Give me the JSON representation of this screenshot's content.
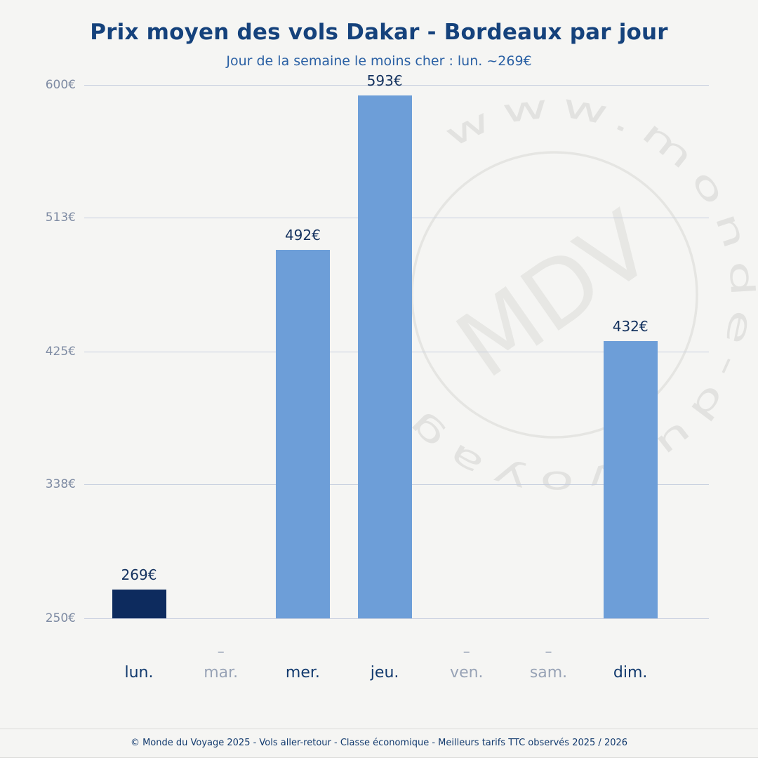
{
  "title": "Prix moyen des vols Dakar - Bordeaux par jour",
  "subtitle": "Jour de la semaine le moins cher : lun. ~269€",
  "chart_data": {
    "type": "bar",
    "categories": [
      "lun.",
      "mar.",
      "mer.",
      "jeu.",
      "ven.",
      "sam.",
      "dim."
    ],
    "values": [
      269,
      null,
      492,
      593,
      null,
      null,
      432
    ],
    "value_labels": [
      "269€",
      null,
      "492€",
      "593€",
      null,
      null,
      "432€"
    ],
    "no_data_marker": "–",
    "ylim": [
      250,
      600
    ],
    "yticks": [
      250,
      338,
      425,
      513,
      600
    ],
    "ytick_labels": [
      "250€",
      "338€",
      "425€",
      "513€",
      "600€"
    ],
    "highlight_index": 0,
    "bar_color": "#6d9ed8",
    "highlight_color": "#0d2b5e",
    "grid": true,
    "legend": null,
    "xlabel": "",
    "ylabel": ""
  },
  "watermark": {
    "circular_text": "www.monde-du-voyage.com",
    "center_text": "MDV"
  },
  "footer": {
    "text": "© Monde du Voyage 2025 - Vols aller-retour - Classe économique - Meilleurs tarifs TTC observés 2025 / 2026"
  }
}
